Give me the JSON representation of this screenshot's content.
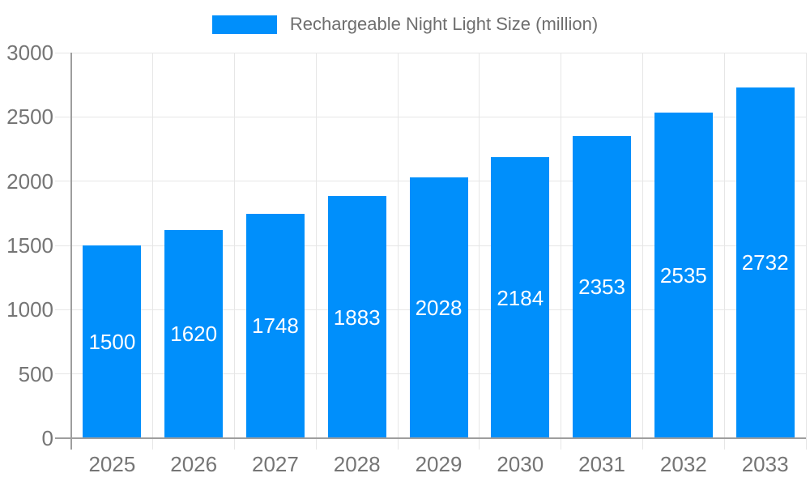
{
  "legend": {
    "label": "Rechargeable Night Light Size (million)"
  },
  "chart_data": {
    "type": "bar",
    "title": "Rechargeable Night Light Size (million)",
    "categories": [
      "2025",
      "2026",
      "2027",
      "2028",
      "2029",
      "2030",
      "2031",
      "2032",
      "2033"
    ],
    "values": [
      1500,
      1620,
      1748,
      1883,
      2028,
      2184,
      2353,
      2535,
      2732
    ],
    "series": [
      {
        "name": "Rechargeable Night Light Size (million)",
        "values": [
          1500,
          1620,
          1748,
          1883,
          2028,
          2184,
          2353,
          2535,
          2732
        ]
      }
    ],
    "xlabel": "",
    "ylabel": "",
    "ylim": [
      0,
      3000
    ],
    "ytick_step": 500,
    "yticks": [
      0,
      500,
      1000,
      1500,
      2000,
      2500,
      3000
    ],
    "grid": true,
    "legend_position": "top",
    "value_labels": "inside-center",
    "bar_color": "#008FFB",
    "value_label_color": "#ffffff",
    "axis_label_color": "#757575",
    "legend_text_color": "#6e6e6e",
    "grid_color": "#e6e6e6",
    "axis_line_color": "#9e9e9e",
    "background_color": "#ffffff"
  }
}
